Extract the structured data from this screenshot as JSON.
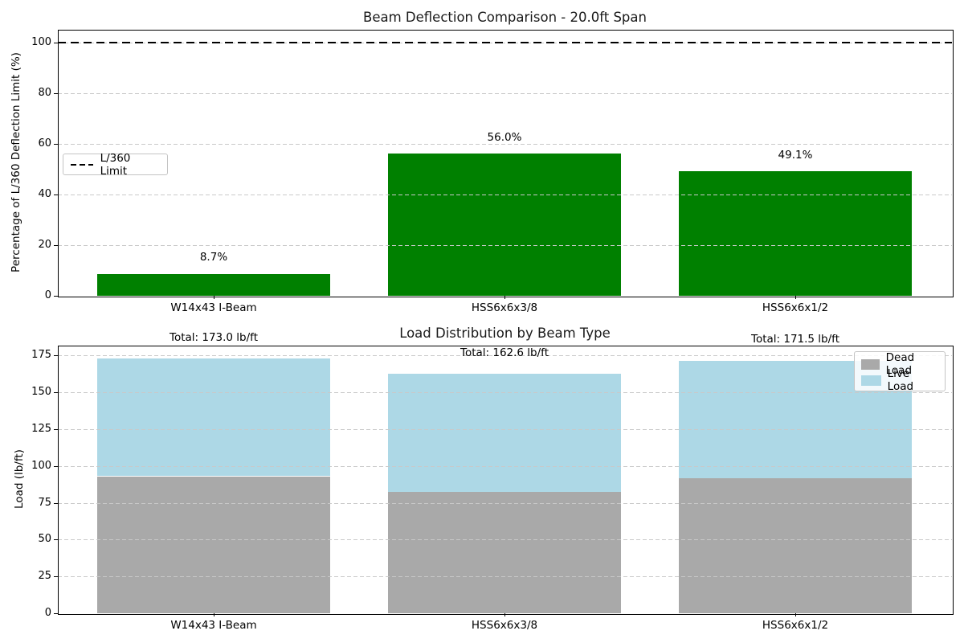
{
  "chart_data": [
    {
      "type": "bar",
      "title": "Beam Deflection Comparison - 20.0ft Span",
      "ylabel": "Percentage of L/360 Deflection Limit (%)",
      "xlabel": "",
      "categories": [
        "W14x43 I-Beam",
        "HSS6x6x3/8",
        "HSS6x6x1/2"
      ],
      "values": [
        8.7,
        56.0,
        49.1
      ],
      "bar_labels": [
        "8.7%",
        "56.0%",
        "49.1%"
      ],
      "bar_color": "#008000",
      "yticks": [
        0,
        20,
        40,
        60,
        80,
        100
      ],
      "ytick_labels": [
        "0",
        "20",
        "40",
        "60",
        "80",
        "100"
      ],
      "ylim": [
        0,
        105
      ],
      "grid": "horizontal-dashed",
      "limit_line": {
        "value": 100,
        "label": "L/360 Limit",
        "color": "#000000",
        "style": "dashed"
      },
      "legend_position": "center-left"
    },
    {
      "type": "stacked-bar",
      "title": "Load Distribution by Beam Type",
      "ylabel": "Load (lb/ft)",
      "xlabel": "",
      "categories": [
        "W14x43 I-Beam",
        "HSS6x6x3/8",
        "HSS6x6x1/2"
      ],
      "series": [
        {
          "name": "Dead Load",
          "color": "#a9a9a9",
          "values": [
            93.0,
            82.6,
            91.5
          ]
        },
        {
          "name": "Live Load",
          "color": "#add8e6",
          "values": [
            80.0,
            80.0,
            80.0
          ]
        }
      ],
      "totals": [
        173.0,
        162.6,
        171.5
      ],
      "total_labels": [
        "Total: 173.0 lb/ft",
        "Total: 162.6 lb/ft",
        "Total: 171.5 lb/ft"
      ],
      "yticks": [
        0,
        25,
        50,
        75,
        100,
        125,
        150,
        175
      ],
      "ytick_labels": [
        "0",
        "25",
        "50",
        "75",
        "100",
        "125",
        "150",
        "175"
      ],
      "ylim": [
        0,
        181.65
      ],
      "grid": "horizontal-dashed",
      "legend_position": "top-right"
    }
  ]
}
